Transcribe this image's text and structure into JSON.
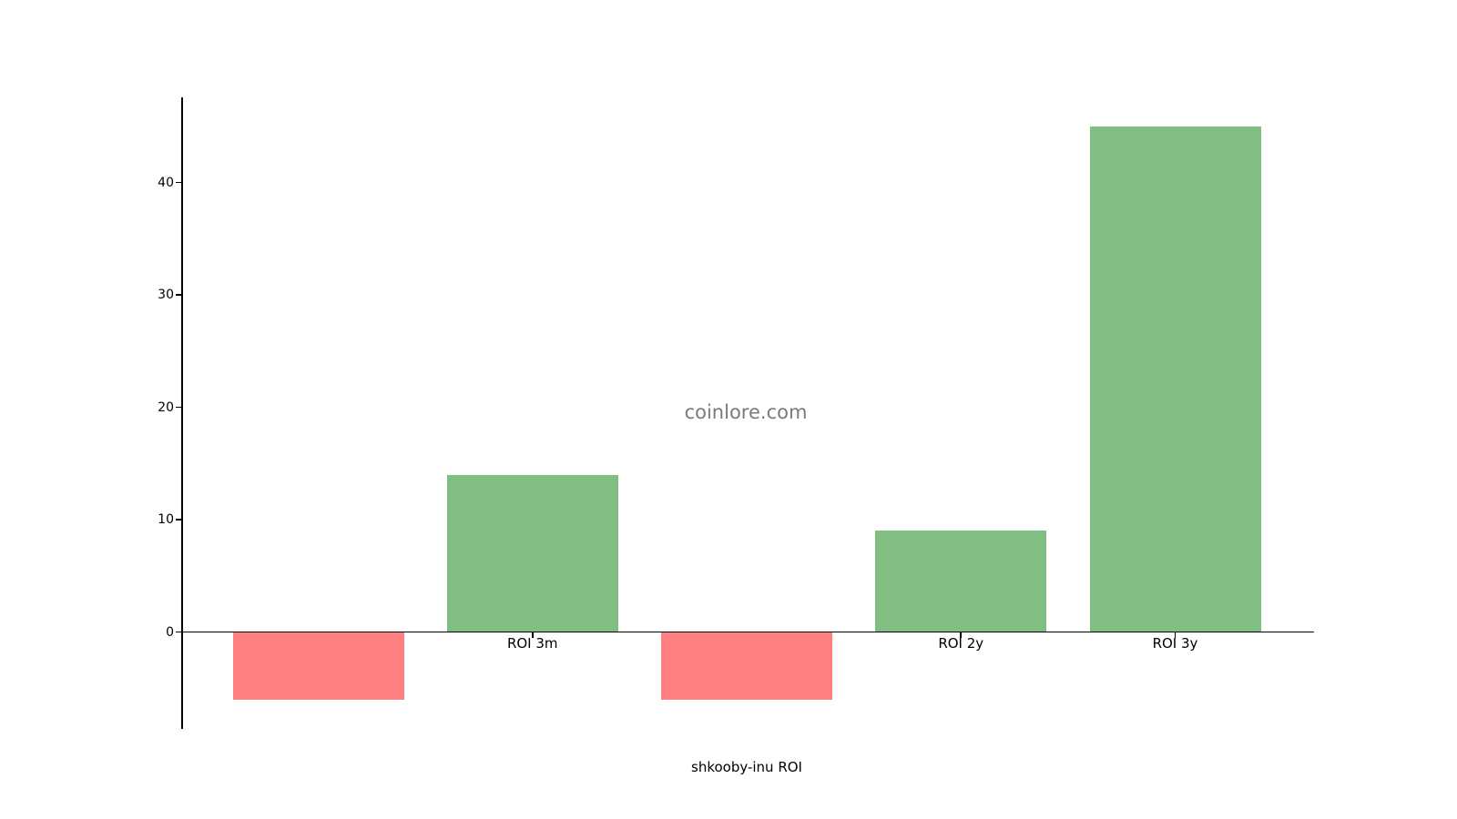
{
  "watermark": "coinlore.com",
  "chart_data": {
    "type": "bar",
    "title": "shkooby-inu ROI",
    "xlabel": "",
    "ylabel": "",
    "categories": [
      "",
      "ROI 3m",
      "",
      "ROI 2y",
      "ROI 3y"
    ],
    "values": [
      -6,
      14,
      -6,
      9,
      45
    ],
    "yticks": [
      0,
      10,
      20,
      30,
      40
    ],
    "ylim": [
      -8.5,
      47.6
    ],
    "grid": false,
    "legend_position": "none",
    "colors": {
      "positive_bar": "#81be81",
      "negative_bar": "#ff8080",
      "axis": "#000000",
      "watermark_text": "#7a7a7a"
    },
    "notes_visible_text": "coinlore.com"
  }
}
